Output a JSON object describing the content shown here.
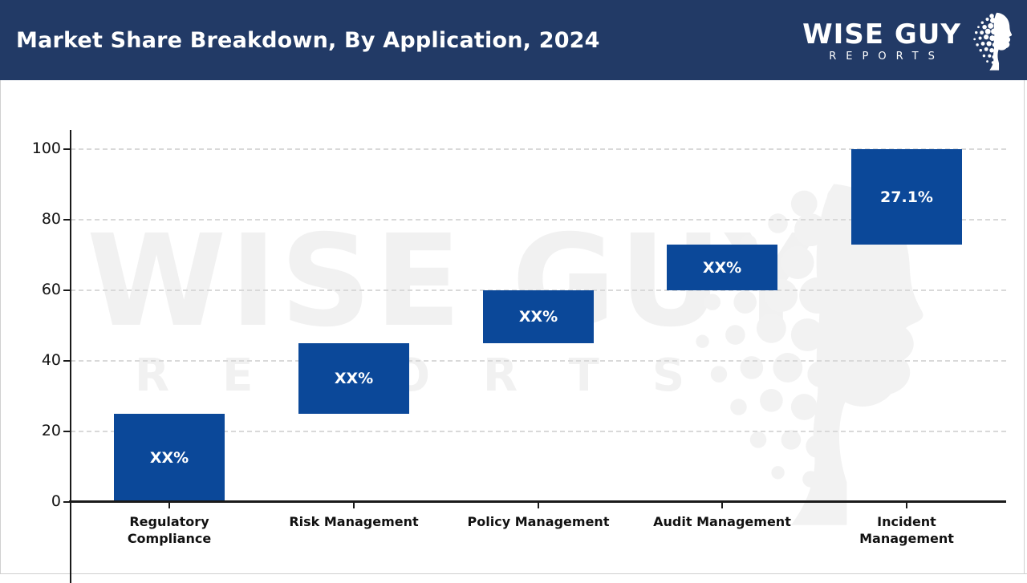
{
  "header": {
    "title": "Market Share Breakdown, By Application, 2024",
    "bg_color": "#223a66",
    "logo": {
      "line1": "WISE GUY",
      "line2": "REPORTS"
    }
  },
  "watermark": {
    "line1": "WISE GUY",
    "line2": "REPORTS"
  },
  "chart_data": {
    "type": "bar",
    "variant": "floating-waterfall",
    "title": "Market Share Breakdown, By Application, 2024",
    "categories": [
      "Regulatory Compliance",
      "Risk Management",
      "Policy Management",
      "Audit Management",
      "Incident Management"
    ],
    "category_display": [
      "Regulatory\nCompliance",
      "Risk Management",
      "Policy Management",
      "Audit Management",
      "Incident\nManagement"
    ],
    "segments": [
      {
        "start": 0,
        "end": 25
      },
      {
        "start": 25,
        "end": 45
      },
      {
        "start": 45,
        "end": 60
      },
      {
        "start": 60,
        "end": 72.9
      },
      {
        "start": 72.9,
        "end": 100
      }
    ],
    "values_pct": [
      25,
      20,
      15,
      12.9,
      27.1
    ],
    "bar_labels": [
      "XX%",
      "XX%",
      "XX%",
      "XX%",
      "27.1%"
    ],
    "bar_color": "#0b4899",
    "ylim": [
      0,
      100
    ],
    "yticks": [
      0,
      20,
      40,
      60,
      80,
      100
    ],
    "xlabel": "",
    "ylabel": "",
    "grid": "horizontal-dashed",
    "legend": "none"
  }
}
